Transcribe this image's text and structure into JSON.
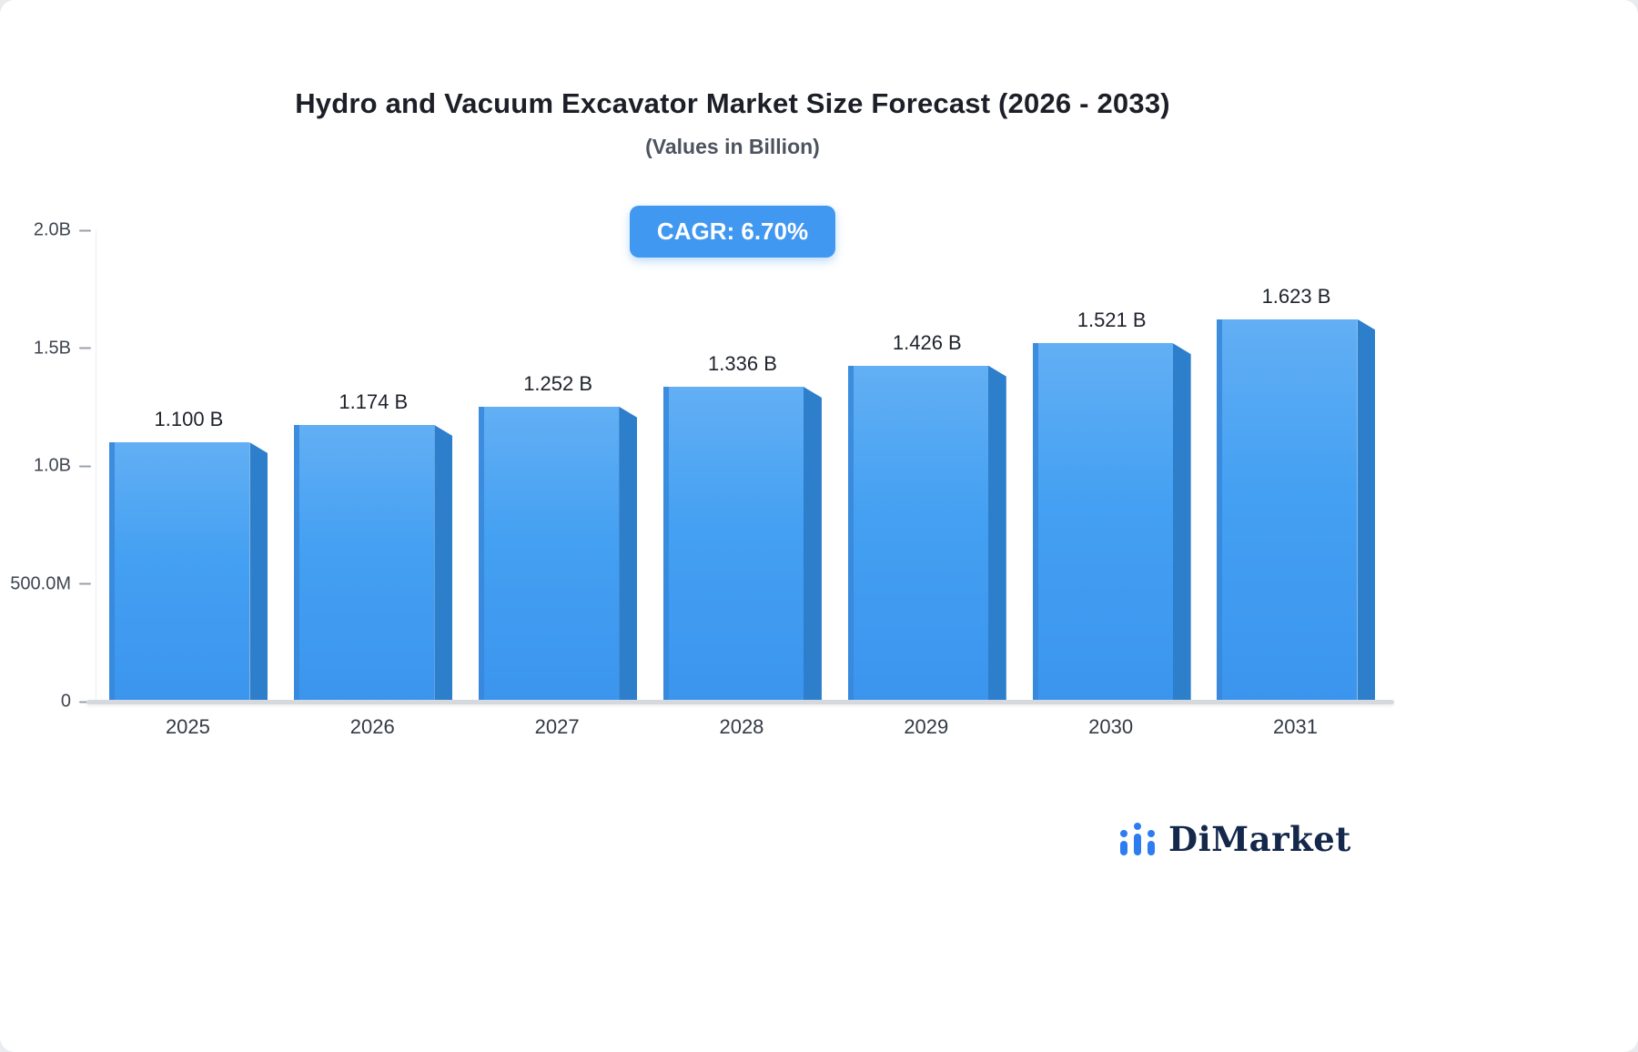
{
  "page": {
    "background": "#e9ebee",
    "card_background": "#ffffff"
  },
  "chart_data": {
    "type": "bar",
    "title": "Hydro and Vacuum Excavator Market Size Forecast (2026 - 2033)",
    "subtitle": "(Values in Billion)",
    "badge": "CAGR: 6.70%",
    "categories": [
      "2025",
      "2026",
      "2027",
      "2028",
      "2029",
      "2030",
      "2031"
    ],
    "values": [
      1.1,
      1.174,
      1.252,
      1.336,
      1.426,
      1.521,
      1.623
    ],
    "value_labels": [
      "1.100 B",
      "1.174 B",
      "1.252 B",
      "1.336 B",
      "1.426 B",
      "1.521 B",
      "1.623 B"
    ],
    "unit": "B",
    "ylim": [
      0,
      2.0
    ],
    "yticks": [
      {
        "label": "2.0B",
        "value": 2.0
      },
      {
        "label": "1.5B",
        "value": 1.5
      },
      {
        "label": "1.0B",
        "value": 1.0
      },
      {
        "label": "500.0M",
        "value": 0.5
      },
      {
        "label": "0",
        "value": 0
      }
    ],
    "grid": false,
    "legend": false,
    "bar_color": "#44a0f2",
    "bar_side_color": "#2d7fcc",
    "badge_color": "#4198f0"
  },
  "logo": {
    "text": "DiMarket",
    "icon": "bar-chart-icon",
    "text_color": "#14284b",
    "accent_color": "#2e7df0"
  }
}
